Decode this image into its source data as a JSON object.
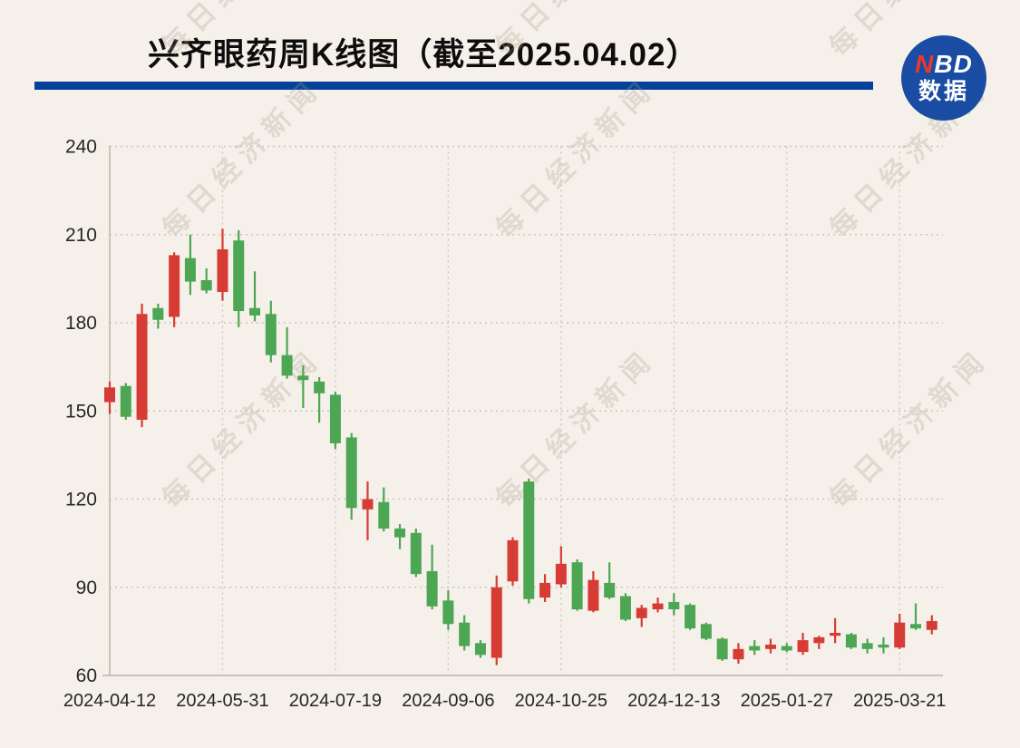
{
  "header": {
    "title": "兴齐眼药周K线图（截至2025.04.02）",
    "logo": {
      "n": "N",
      "bd": "BD",
      "line2": "数据"
    }
  },
  "watermark": {
    "text": "每日经济新闻"
  },
  "chart_data": {
    "type": "candlestick",
    "title": "兴齐眼药周K线图（截至2025.04.02）",
    "xlabel": "",
    "ylabel": "",
    "ylim": [
      60,
      240
    ],
    "grid": true,
    "y_ticks": [
      240,
      210,
      180,
      150,
      120,
      90,
      60
    ],
    "x_tick_labels": [
      "2024-04-12",
      "2024-05-31",
      "2024-07-19",
      "2024-09-06",
      "2024-10-25",
      "2024-12-13",
      "2025-01-27",
      "2025-03-21"
    ],
    "x_tick_indices": [
      0,
      7,
      14,
      21,
      28,
      35,
      42,
      49
    ],
    "up_color": "#d63c35",
    "down_color": "#4da653",
    "candles_ohlc": [
      [
        153,
        160,
        149,
        158
      ],
      [
        158.5,
        159.5,
        147,
        148
      ],
      [
        147,
        186.5,
        144.5,
        183
      ],
      [
        185,
        186.5,
        178,
        181
      ],
      [
        182,
        204,
        178.5,
        203
      ],
      [
        202,
        210,
        189.5,
        194
      ],
      [
        194.5,
        198.5,
        190,
        191
      ],
      [
        190.5,
        212,
        187.5,
        205
      ],
      [
        208,
        211.5,
        178.5,
        184
      ],
      [
        185,
        197.5,
        180.5,
        182.5
      ],
      [
        183,
        187.5,
        166.5,
        169
      ],
      [
        169,
        178.5,
        161,
        162
      ],
      [
        162,
        165.5,
        151,
        160.5
      ],
      [
        160,
        161.5,
        146,
        156
      ],
      [
        155.5,
        156.5,
        137,
        139
      ],
      [
        141,
        142.5,
        113,
        117
      ],
      [
        116.5,
        126,
        106,
        120
      ],
      [
        119,
        124,
        109,
        110
      ],
      [
        110,
        111.5,
        103,
        107
      ],
      [
        108.5,
        110,
        93.5,
        94.5
      ],
      [
        95.5,
        104.5,
        82.5,
        83.5
      ],
      [
        85.5,
        89,
        75.5,
        77.5
      ],
      [
        78,
        80.5,
        68.5,
        70
      ],
      [
        71,
        72,
        66,
        67
      ],
      [
        66,
        94,
        63.5,
        90
      ],
      [
        92,
        107,
        90.5,
        106
      ],
      [
        126,
        127,
        84.5,
        86
      ],
      [
        86.5,
        94.5,
        85,
        91.5
      ],
      [
        91,
        104,
        90,
        98
      ],
      [
        98.5,
        99.5,
        82,
        82.5
      ],
      [
        82,
        95.5,
        81.5,
        92.5
      ],
      [
        91.5,
        98.5,
        86,
        86.5
      ],
      [
        87,
        88,
        78.5,
        79
      ],
      [
        79.5,
        84,
        76.5,
        83
      ],
      [
        82.5,
        86.5,
        81.5,
        84.5
      ],
      [
        85,
        88,
        80.5,
        82.5
      ],
      [
        84,
        84.5,
        75.5,
        76
      ],
      [
        77.5,
        78,
        72,
        72.5
      ],
      [
        72.5,
        73,
        65,
        65.5
      ],
      [
        65.5,
        71,
        64,
        69
      ],
      [
        70,
        72,
        67,
        68.5
      ],
      [
        69,
        72.5,
        67.5,
        70.5
      ],
      [
        70,
        71,
        68,
        68.5
      ],
      [
        68,
        74.5,
        67,
        72
      ],
      [
        71,
        73.5,
        69,
        73
      ],
      [
        73.5,
        79.5,
        71,
        74.5
      ],
      [
        74,
        74.5,
        69,
        69.5
      ],
      [
        71,
        72.5,
        67.5,
        69
      ],
      [
        70.5,
        73,
        67.5,
        69.5
      ],
      [
        69.5,
        81,
        69,
        78
      ],
      [
        77.5,
        84.5,
        75.5,
        76
      ],
      [
        75.5,
        80.5,
        74,
        78.5
      ]
    ]
  }
}
